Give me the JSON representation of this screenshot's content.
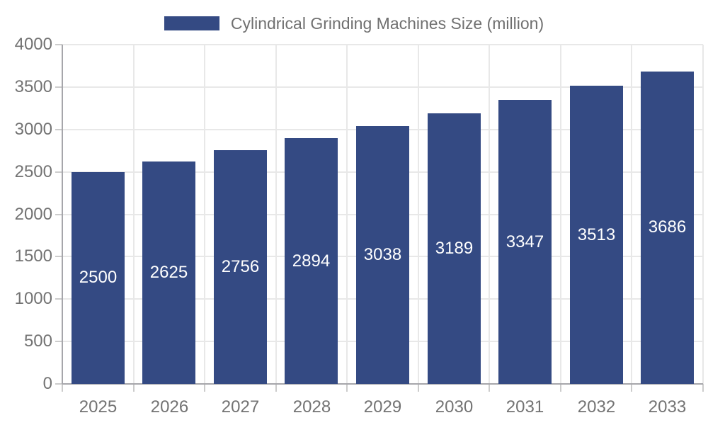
{
  "legend": {
    "label": "Cylindrical Grinding Machines Size (million)"
  },
  "chart_data": {
    "type": "bar",
    "title": "",
    "categories": [
      "2025",
      "2026",
      "2027",
      "2028",
      "2029",
      "2030",
      "2031",
      "2032",
      "2033"
    ],
    "values": [
      2500,
      2625,
      2756,
      2894,
      3038,
      3189,
      3347,
      3513,
      3686
    ],
    "series_name": "Cylindrical Grinding Machines Size (million)",
    "xlabel": "",
    "ylabel": "",
    "ylim": [
      0,
      4000
    ],
    "yticks": [
      0,
      500,
      1000,
      1500,
      2000,
      2500,
      3000,
      3500,
      4000
    ],
    "grid": true,
    "legend_position": "top-center",
    "bar_labels_inside": true,
    "colors": {
      "bar": "#344a83",
      "bar_label": "#ffffff",
      "grid": "#e8e8e8",
      "axis": "#a6a6ab",
      "tick": "#cccccc",
      "tick_label": "#737373",
      "legend_text": "#707070",
      "background": "#ffffff"
    }
  }
}
